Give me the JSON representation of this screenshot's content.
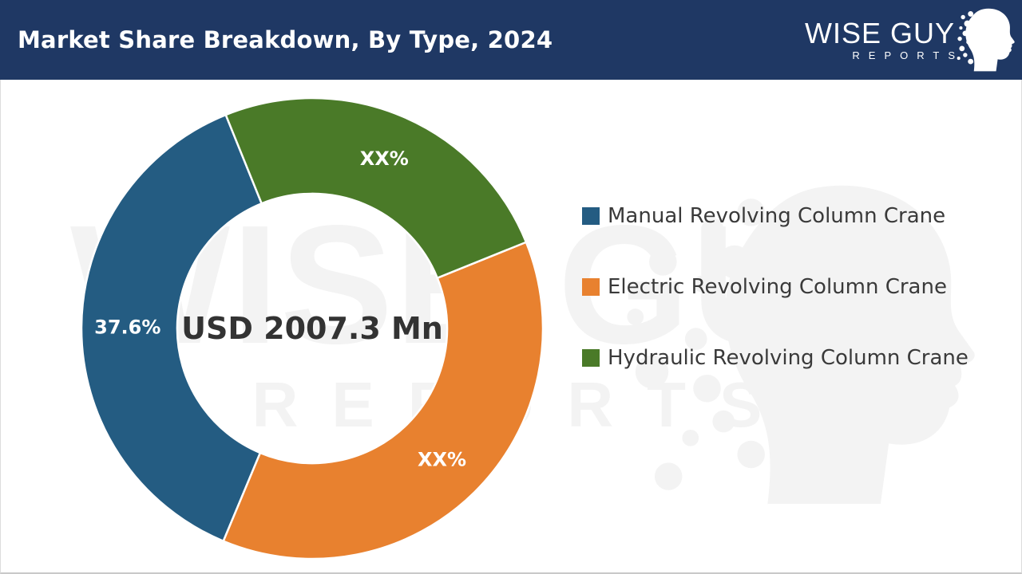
{
  "header": {
    "title": "Market Share Breakdown, By Type, 2024",
    "logo": {
      "line1": "WISE GUY",
      "line2": "REPORTS"
    }
  },
  "colors": {
    "header_background": "#1F3864",
    "watermark": "#F3F3F3",
    "legend_text": "#3A3A3A",
    "center_text": "#333333"
  },
  "chart_data": {
    "type": "pie",
    "subtype": "donut",
    "title": "Market Share Breakdown, By Type, 2024",
    "center_label": "USD 2007.3 Mn",
    "start_angle_deg": -22,
    "direction": "clockwise",
    "inner_radius_ratio": 0.585,
    "slices": [
      {
        "label": "Hydraulic Revolving Column Crane",
        "display_label": "XX%",
        "value_pct": 25.0,
        "color": "#4A7A28"
      },
      {
        "label": "Electric Revolving Column Crane",
        "display_label": "XX%",
        "value_pct": 37.4,
        "color": "#E8812F"
      },
      {
        "label": "Manual Revolving Column Crane",
        "display_label": "37.6%",
        "value_pct": 37.6,
        "color": "#245C82"
      }
    ],
    "legend_position": "right",
    "legend_order_slice_indices": [
      2,
      1,
      0
    ]
  }
}
